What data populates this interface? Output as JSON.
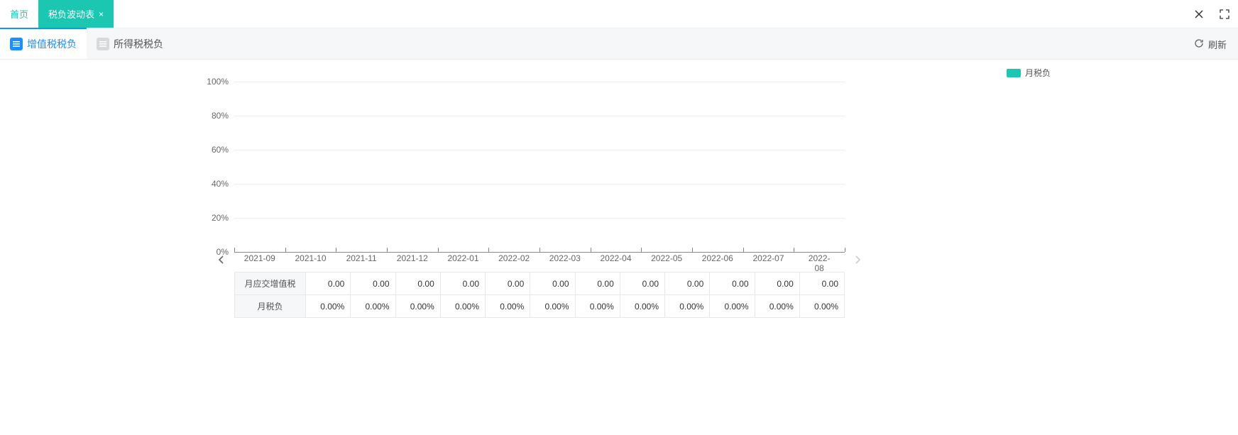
{
  "topTabs": {
    "home": "首页",
    "active": "税负波动表"
  },
  "subTabs": {
    "t1": "增值税税负",
    "t2": "所得税税负"
  },
  "refresh": "刷新",
  "legend": {
    "label": "月税负",
    "color": "#1bc7b1"
  },
  "chart": {
    "type": "bar",
    "ylim": [
      0,
      100
    ],
    "ytick_step": 20,
    "yticks": [
      "0%",
      "20%",
      "40%",
      "60%",
      "80%",
      "100%"
    ],
    "grid_color": "#eeeeee",
    "axis_color": "#888888",
    "background": "#ffffff",
    "categories": [
      "2021-09",
      "2021-10",
      "2021-11",
      "2021-12",
      "2022-01",
      "2022-02",
      "2022-03",
      "2022-04",
      "2022-05",
      "2022-06",
      "2022-07",
      "2022-08"
    ],
    "series": {
      "月税负": [
        0,
        0,
        0,
        0,
        0,
        0,
        0,
        0,
        0,
        0,
        0,
        0
      ]
    }
  },
  "table": {
    "row1_label": "月应交增值税",
    "row2_label": "月税负",
    "row1": [
      "0.00",
      "0.00",
      "0.00",
      "0.00",
      "0.00",
      "0.00",
      "0.00",
      "0.00",
      "0.00",
      "0.00",
      "0.00",
      "0.00"
    ],
    "row2": [
      "0.00%",
      "0.00%",
      "0.00%",
      "0.00%",
      "0.00%",
      "0.00%",
      "0.00%",
      "0.00%",
      "0.00%",
      "0.00%",
      "0.00%",
      "0.00%"
    ]
  }
}
